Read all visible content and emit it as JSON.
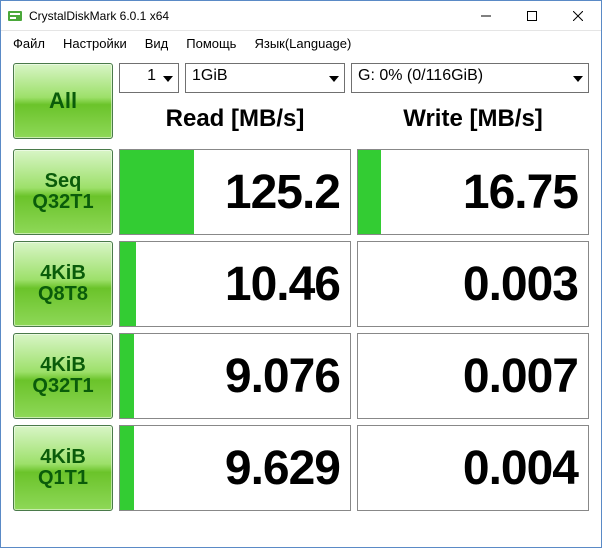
{
  "window": {
    "title": "CrystalDiskMark 6.0.1 x64"
  },
  "menu": {
    "file": "Файл",
    "settings": "Настройки",
    "view": "Вид",
    "help": "Помощь",
    "language": "Язык(Language)"
  },
  "controls": {
    "all_label": "All",
    "runs": "1",
    "size": "1GiB",
    "drive": "G: 0% (0/116GiB)"
  },
  "headers": {
    "read": "Read [MB/s]",
    "write": "Write [MB/s]"
  },
  "colors": {
    "bar": "#33cc33",
    "button_text": "#0a5c0a",
    "cell_border": "#888888"
  },
  "max_value": 1000,
  "tests": [
    {
      "line1": "Seq",
      "line2": "Q32T1",
      "read": "125.2",
      "read_pct": 32,
      "write": "16.75",
      "write_pct": 10
    },
    {
      "line1": "4KiB",
      "line2": "Q8T8",
      "read": "10.46",
      "read_pct": 7,
      "write": "0.003",
      "write_pct": 0
    },
    {
      "line1": "4KiB",
      "line2": "Q32T1",
      "read": "9.076",
      "read_pct": 6,
      "write": "0.007",
      "write_pct": 0
    },
    {
      "line1": "4KiB",
      "line2": "Q1T1",
      "read": "9.629",
      "read_pct": 6,
      "write": "0.004",
      "write_pct": 0
    }
  ]
}
